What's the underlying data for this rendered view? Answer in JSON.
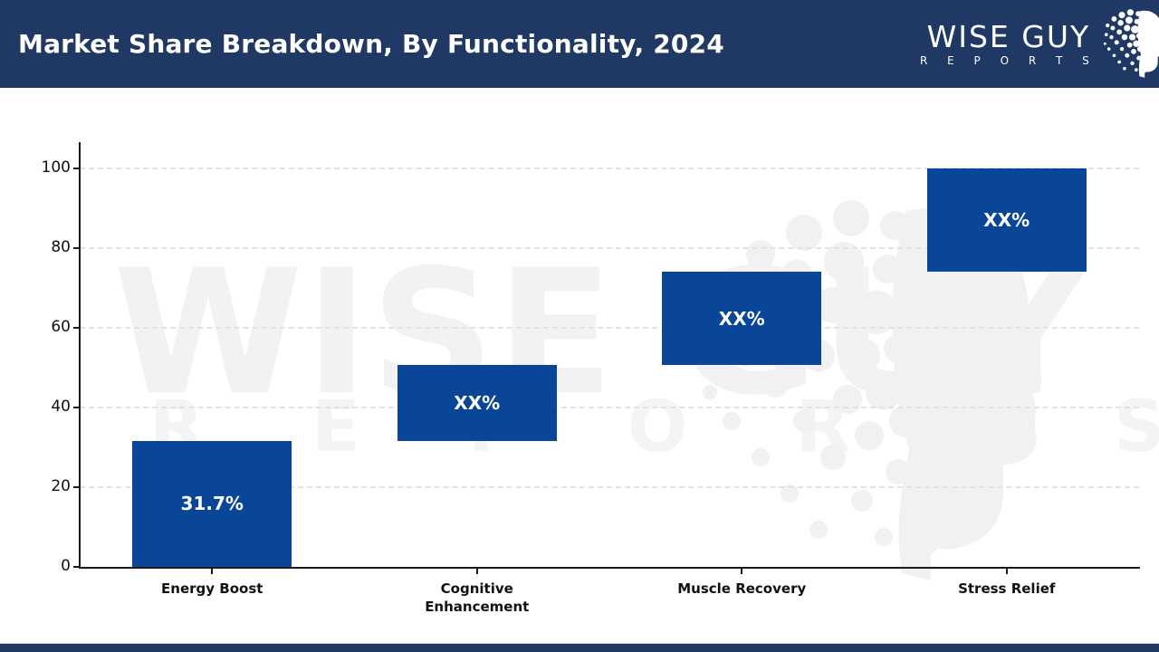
{
  "header": {
    "title": "Market Share Breakdown, By Functionality, 2024",
    "logo": {
      "line1": "WISE GUY",
      "line2": "R E P O R T S"
    },
    "bg_color": "#1F3864",
    "text_color": "#FFFFFF"
  },
  "watermark": {
    "line1": "WISE GUY",
    "line2": "R E P O R T S"
  },
  "chart_data": {
    "type": "bar",
    "subtype": "waterfall",
    "title": "Market Share Breakdown, By Functionality, 2024",
    "categories": [
      "Energy Boost",
      "Cognitive Enhancement",
      "Muscle Recovery",
      "Stress Relief"
    ],
    "segments": [
      {
        "label": "Energy Boost",
        "start": 0,
        "end": 31.7,
        "display": "31.7%"
      },
      {
        "label": "Cognitive Enhancement",
        "start": 31.7,
        "end": 50.7,
        "display": "XX%"
      },
      {
        "label": "Muscle Recovery",
        "start": 50.7,
        "end": 74.0,
        "display": "XX%"
      },
      {
        "label": "Stress Relief",
        "start": 74.0,
        "end": 100,
        "display": "XX%"
      }
    ],
    "yticks": [
      0,
      20,
      40,
      60,
      80,
      100
    ],
    "ylim": [
      0,
      106
    ],
    "xlabel": "",
    "ylabel": "",
    "grid": "horizontal-dashed",
    "legend": "none",
    "bar_color": "#0A4698",
    "bar_label_color": "#FFFFFF",
    "axis_color": "#1a1a1a"
  }
}
